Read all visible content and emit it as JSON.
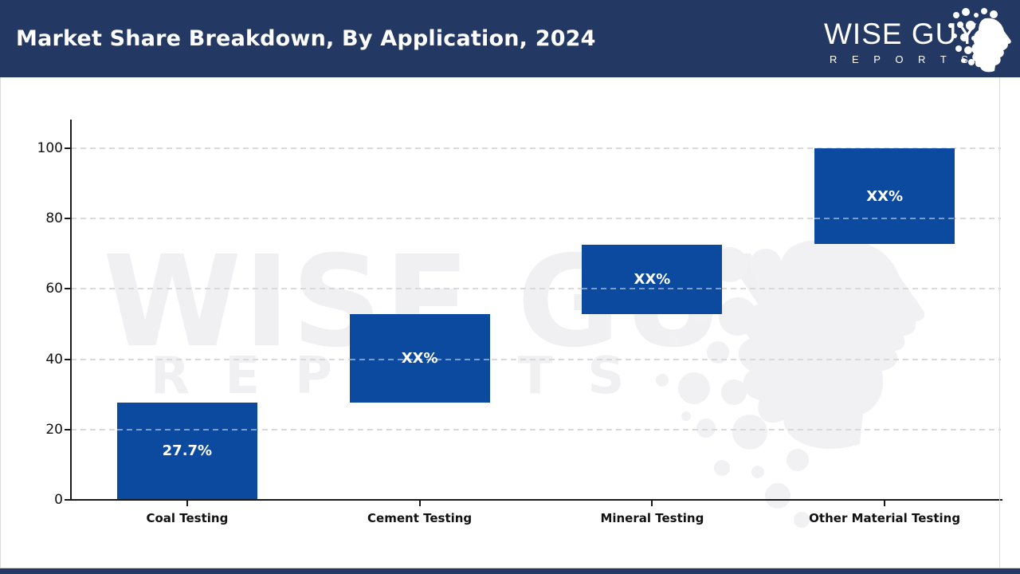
{
  "header": {
    "title": "Market Share Breakdown, By Application, 2024",
    "logo": {
      "name_line": "WISE GUY",
      "sub_line": "R E P O R T S"
    }
  },
  "watermark": {
    "name_line": "WISE GUY",
    "sub_line": "REPORTS"
  },
  "chart_data": {
    "type": "bar",
    "subtype": "floating-waterfall",
    "title": "Market Share Breakdown, By Application, 2024",
    "categories": [
      "Coal Testing",
      "Cement Testing",
      "Mineral Testing",
      "Other Material Testing"
    ],
    "series": [
      {
        "name": "Market Share",
        "segments": [
          {
            "category": "Coal Testing",
            "start": 0,
            "end": 27.7,
            "label": "27.7%"
          },
          {
            "category": "Cement Testing",
            "start": 27.7,
            "end": 52.8,
            "label": "XX%"
          },
          {
            "category": "Mineral Testing",
            "start": 52.8,
            "end": 72.5,
            "label": "XX%"
          },
          {
            "category": "Other Material Testing",
            "start": 72.7,
            "end": 100,
            "label": "XX%"
          }
        ]
      }
    ],
    "xlabel": "",
    "ylabel": "",
    "yticks": [
      0,
      20,
      40,
      60,
      80,
      100
    ],
    "ylim": [
      0,
      108
    ],
    "grid": "horizontal-dashed",
    "legend": "none"
  },
  "colors": {
    "header_bg": "#233862",
    "footer_bg": "#233862",
    "bar": "#0c4aa0",
    "bar_label": "#ffffff",
    "watermark": "#f0f0f2",
    "grid": "#d9d9d9",
    "axis": "#1a1a1a"
  }
}
